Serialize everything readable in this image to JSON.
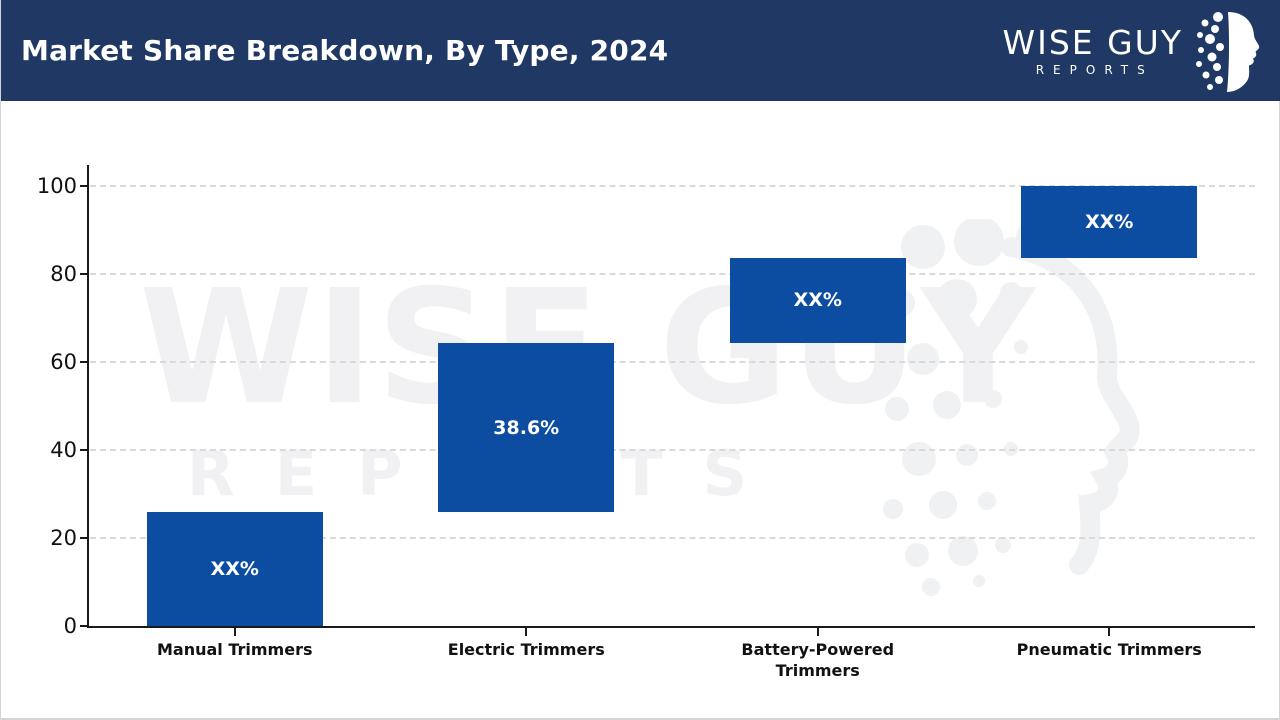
{
  "header": {
    "title": "Market Share Breakdown, By Type, 2024",
    "logo": {
      "name": "WISE GUY",
      "subtitle": "REPORTS"
    }
  },
  "watermark": {
    "name": "WISE GUY",
    "subtitle": "REPORTS"
  },
  "chart_data": {
    "type": "bar",
    "subtype": "waterfall",
    "title": "Market Share Breakdown, By Type, 2024",
    "categories": [
      "Manual Trimmers",
      "Electric Trimmers",
      "Battery-Powered Trimmers",
      "Pneumatic Trimmers"
    ],
    "bars": [
      {
        "category": "Manual Trimmers",
        "start": 0,
        "end": 25.8,
        "value": 25.8,
        "label": "XX%"
      },
      {
        "category": "Electric Trimmers",
        "start": 25.8,
        "end": 64.4,
        "value": 38.6,
        "label": "38.6%"
      },
      {
        "category": "Battery-Powered Trimmers",
        "start": 64.4,
        "end": 83.6,
        "value": 19.2,
        "label": "XX%"
      },
      {
        "category": "Pneumatic Trimmers",
        "start": 83.6,
        "end": 100,
        "value": 16.4,
        "label": "XX%"
      }
    ],
    "yticks": [
      0,
      20,
      40,
      60,
      80,
      100
    ],
    "ylim": [
      0,
      105
    ],
    "xlabel": "",
    "ylabel": "",
    "grid": "horizontal-dashed",
    "legend": "none",
    "bar_color": "#0c4da2",
    "bar_label_color": "#ffffff"
  },
  "colors": {
    "header_bg": "#1f3864",
    "bar": "#0c4da2",
    "axis": "#1a1a1a",
    "grid": "#d9d9d9",
    "watermark": "#f1f1f3",
    "tick_label": "#111111"
  }
}
